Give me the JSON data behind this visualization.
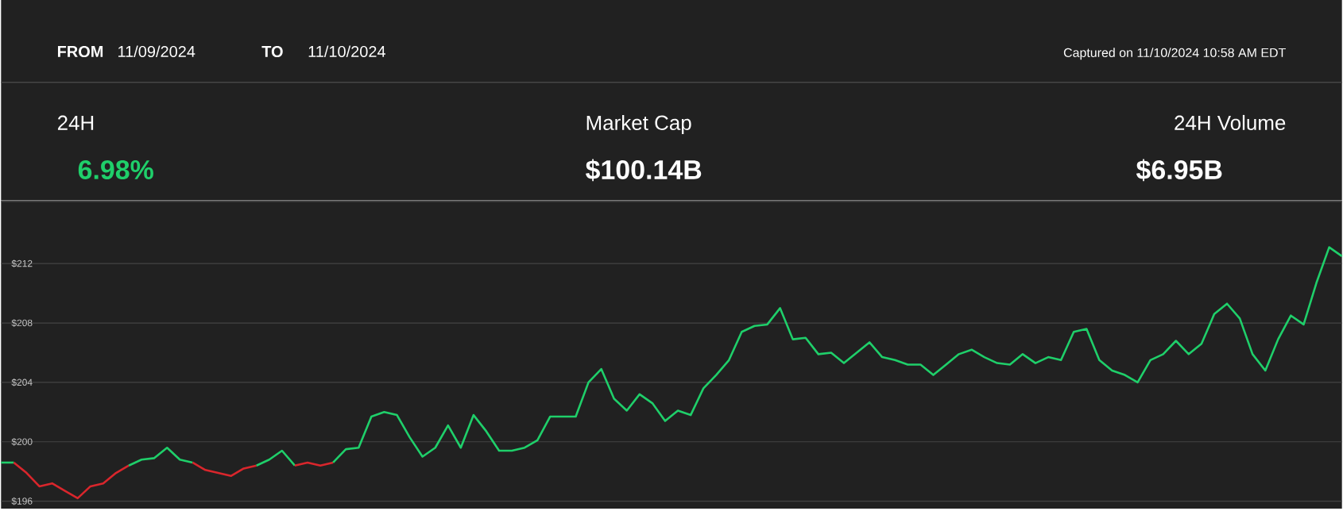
{
  "chart_data": {
    "type": "line",
    "annotations": [
      "FROM",
      "11/09/2024",
      "TO",
      "11/10/2024",
      "Captured on 11/10/2024 10:58 AM EDT",
      "24H",
      "6.98%",
      "Market Cap",
      "$100.14B",
      "24H Volume",
      "$6.95B"
    ],
    "categories": [
      null,
      null,
      null,
      null,
      null,
      null,
      null,
      null,
      null,
      null,
      null,
      null,
      null,
      null,
      null,
      null,
      null,
      null,
      null,
      null,
      null,
      null,
      null,
      null,
      null,
      null,
      null,
      null,
      null,
      null,
      null,
      null,
      null,
      null,
      null,
      null,
      null,
      null,
      null,
      null,
      null,
      null,
      null,
      null,
      null,
      null,
      null,
      null,
      null,
      null,
      null,
      null,
      null,
      null,
      null,
      null,
      null,
      null,
      null,
      null,
      null,
      null,
      null,
      null,
      null,
      null,
      null,
      null,
      null,
      null,
      null,
      null,
      null,
      null,
      null,
      null,
      null,
      null,
      null,
      null,
      null,
      null,
      null,
      null,
      null,
      null,
      null,
      null,
      null,
      null,
      null,
      null,
      null,
      null,
      null,
      null,
      null,
      null,
      null,
      null,
      null,
      null,
      null,
      null,
      null,
      null
    ],
    "series": [
      {
        "color": "#1fcf6a",
        "values": [
          198.6,
          198.6,
          null,
          null,
          null,
          null,
          null,
          null,
          null,
          null,
          null,
          null,
          null,
          null,
          null,
          null,
          null,
          null,
          null,
          null,
          null,
          null,
          null,
          null,
          null,
          null,
          null,
          null,
          null,
          null,
          null,
          null,
          null,
          null,
          null,
          null,
          null,
          null,
          null,
          null,
          null,
          null,
          null,
          null,
          null,
          null,
          null,
          null,
          null,
          null,
          null,
          null,
          null,
          null,
          null,
          null,
          null,
          null,
          null,
          null,
          null,
          null,
          null,
          null,
          null,
          null,
          null,
          null,
          null,
          null,
          null,
          null,
          null,
          null,
          null,
          null,
          null,
          null,
          null,
          null,
          null,
          null,
          null,
          null,
          null,
          null,
          null,
          null,
          null,
          null,
          null,
          null,
          null,
          null,
          null,
          null,
          null,
          null,
          null,
          null,
          null,
          null,
          null,
          null,
          null,
          null
        ]
      },
      {
        "color": "#d9262c",
        "values": [
          null,
          198.6,
          197.9,
          197.0,
          197.2,
          196.7,
          196.2,
          197.0,
          197.2,
          197.9,
          198.4,
          null,
          null,
          null,
          null,
          null,
          null,
          null,
          null,
          null,
          null,
          null,
          null,
          null,
          null,
          null,
          null,
          null,
          null,
          null,
          null,
          null,
          null,
          null,
          null,
          null,
          null,
          null,
          null,
          null,
          null,
          null,
          null,
          null,
          null,
          null,
          null,
          null,
          null,
          null,
          null,
          null,
          null,
          null,
          null,
          null,
          null,
          null,
          null,
          null,
          null,
          null,
          null,
          null,
          null,
          null,
          null,
          null,
          null,
          null,
          null,
          null,
          null,
          null,
          null,
          null,
          null,
          null,
          null,
          null,
          null,
          null,
          null,
          null,
          null,
          null,
          null,
          null,
          null,
          null,
          null,
          null,
          null,
          null,
          null,
          null,
          null,
          null,
          null,
          null,
          null,
          null,
          null,
          null,
          null,
          null
        ]
      },
      {
        "color": "#1fcf6a",
        "values": [
          null,
          null,
          null,
          null,
          null,
          null,
          null,
          null,
          null,
          null,
          198.4,
          198.8,
          198.9,
          199.6,
          198.8,
          198.6,
          null,
          null,
          null,
          null,
          null,
          null,
          null,
          null,
          null,
          null,
          null,
          null,
          null,
          null,
          null,
          null,
          null,
          null,
          null,
          null,
          null,
          null,
          null,
          null,
          null,
          null,
          null,
          null,
          null,
          null,
          null,
          null,
          null,
          null,
          null,
          null,
          null,
          null,
          null,
          null,
          null,
          null,
          null,
          null,
          null,
          null,
          null,
          null,
          null,
          null,
          null,
          null,
          null,
          null,
          null,
          null,
          null,
          null,
          null,
          null,
          null,
          null,
          null,
          null,
          null,
          null,
          null,
          null,
          null,
          null,
          null,
          null,
          null,
          null,
          null,
          null,
          null,
          null,
          null,
          null,
          null,
          null,
          null,
          null,
          null,
          null,
          null,
          null,
          null,
          null
        ]
      },
      {
        "color": "#d9262c",
        "values": [
          null,
          null,
          null,
          null,
          null,
          null,
          null,
          null,
          null,
          null,
          null,
          null,
          null,
          null,
          null,
          198.6,
          198.1,
          197.9,
          197.7,
          198.2,
          198.4,
          null,
          null,
          null,
          null,
          null,
          null,
          null,
          null,
          null,
          null,
          null,
          null,
          null,
          null,
          null,
          null,
          null,
          null,
          null,
          null,
          null,
          null,
          null,
          null,
          null,
          null,
          null,
          null,
          null,
          null,
          null,
          null,
          null,
          null,
          null,
          null,
          null,
          null,
          null,
          null,
          null,
          null,
          null,
          null,
          null,
          null,
          null,
          null,
          null,
          null,
          null,
          null,
          null,
          null,
          null,
          null,
          null,
          null,
          null,
          null,
          null,
          null,
          null,
          null,
          null,
          null,
          null,
          null,
          null,
          null,
          null,
          null,
          null,
          null,
          null,
          null,
          null,
          null,
          null,
          null,
          null,
          null,
          null,
          null,
          null
        ]
      },
      {
        "color": "#1fcf6a",
        "values": [
          null,
          null,
          null,
          null,
          null,
          null,
          null,
          null,
          null,
          null,
          null,
          null,
          null,
          null,
          null,
          null,
          null,
          null,
          null,
          null,
          198.4,
          198.8,
          199.4,
          198.4,
          null,
          null,
          null,
          null,
          null,
          null,
          null,
          null,
          null,
          null,
          null,
          null,
          null,
          null,
          null,
          null,
          null,
          null,
          null,
          null,
          null,
          null,
          null,
          null,
          null,
          null,
          null,
          null,
          null,
          null,
          null,
          null,
          null,
          null,
          null,
          null,
          null,
          null,
          null,
          null,
          null,
          null,
          null,
          null,
          null,
          null,
          null,
          null,
          null,
          null,
          null,
          null,
          null,
          null,
          null,
          null,
          null,
          null,
          null,
          null,
          null,
          null,
          null,
          null,
          null,
          null,
          null,
          null,
          null,
          null,
          null,
          null,
          null,
          null,
          null,
          null,
          null,
          null,
          null,
          null,
          null,
          null
        ]
      },
      {
        "color": "#d9262c",
        "values": [
          null,
          null,
          null,
          null,
          null,
          null,
          null,
          null,
          null,
          null,
          null,
          null,
          null,
          null,
          null,
          null,
          null,
          null,
          null,
          null,
          null,
          null,
          null,
          198.4,
          198.6,
          198.4,
          198.6,
          null,
          null,
          null,
          null,
          null,
          null,
          null,
          null,
          null,
          null,
          null,
          null,
          null,
          null,
          null,
          null,
          null,
          null,
          null,
          null,
          null,
          null,
          null,
          null,
          null,
          null,
          null,
          null,
          null,
          null,
          null,
          null,
          null,
          null,
          null,
          null,
          null,
          null,
          null,
          null,
          null,
          null,
          null,
          null,
          null,
          null,
          null,
          null,
          null,
          null,
          null,
          null,
          null,
          null,
          null,
          null,
          null,
          null,
          null,
          null,
          null,
          null,
          null,
          null,
          null,
          null,
          null,
          null,
          null,
          null,
          null,
          null,
          null,
          null,
          null,
          null,
          null,
          null,
          null
        ]
      },
      {
        "color": "#1fcf6a",
        "values": [
          null,
          null,
          null,
          null,
          null,
          null,
          null,
          null,
          null,
          null,
          null,
          null,
          null,
          null,
          null,
          null,
          null,
          null,
          null,
          null,
          null,
          null,
          null,
          null,
          null,
          null,
          198.6,
          199.5,
          199.6,
          201.7,
          202.0,
          201.8,
          200.3,
          199.0,
          199.6,
          201.1,
          199.6,
          201.8,
          200.7,
          199.4,
          199.4,
          199.6,
          200.1,
          201.7,
          201.7,
          201.7,
          204.0,
          204.9,
          202.9,
          202.1,
          203.2,
          202.6,
          201.4,
          202.1,
          201.8,
          203.6,
          204.5,
          205.5,
          207.4,
          207.8,
          207.9,
          209.0,
          206.9,
          207.0,
          205.9,
          206.0,
          205.3,
          206.0,
          206.7,
          205.7,
          205.5,
          205.2,
          205.2,
          204.5,
          205.2,
          205.9,
          206.2,
          205.7,
          205.3,
          205.2,
          205.9,
          205.3,
          205.7,
          205.5,
          207.4,
          207.6,
          205.5,
          204.8,
          204.5,
          204.0,
          205.5,
          205.9,
          206.8,
          205.9,
          206.6,
          208.6,
          209.3,
          208.3,
          205.9,
          204.8,
          206.9,
          208.5,
          207.9,
          210.7,
          213.1,
          212.5
        ]
      }
    ],
    "ylim": [
      195.5,
      216.2
    ],
    "yticks": [
      {
        "value": 196,
        "label": "$196"
      },
      {
        "value": 200,
        "label": "$200"
      },
      {
        "value": 204,
        "label": "$204"
      },
      {
        "value": 208,
        "label": "$208"
      },
      {
        "value": 212,
        "label": "$212"
      }
    ],
    "grid": "y",
    "tick_labels": "y"
  }
}
